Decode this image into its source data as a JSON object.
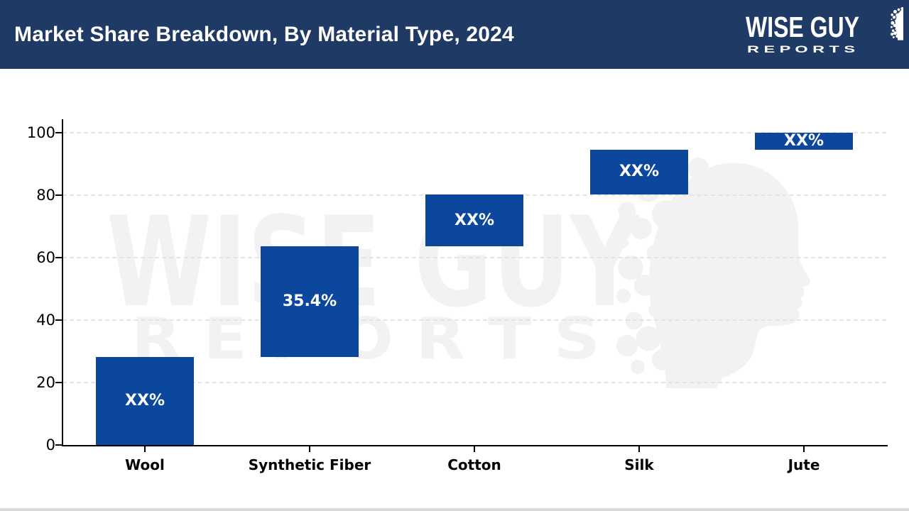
{
  "header": {
    "title": "Market Share Breakdown, By Material Type, 2024",
    "logo": {
      "name_line": "WISE GUY",
      "reports_line": "R E P O R T S",
      "face_icon": "dotted-head-profile"
    },
    "bg_color": "#203a66"
  },
  "watermark": {
    "name_line": "WISE GUY",
    "reports_line": "R E P O R T S",
    "color": "#f2f2f4"
  },
  "chart_data": {
    "type": "bar",
    "subtype": "waterfall",
    "title": "Market Share Breakdown, By Material Type, 2024",
    "categories": [
      "Wool",
      "Synthetic Fiber",
      "Cotton",
      "Silk",
      "Jute"
    ],
    "segments": [
      {
        "category": "Wool",
        "start": 0,
        "end": 28.2,
        "label": "XX%"
      },
      {
        "category": "Synthetic Fiber",
        "start": 28.2,
        "end": 63.6,
        "label": "35.4%"
      },
      {
        "category": "Cotton",
        "start": 63.6,
        "end": 80.2,
        "label": "XX%"
      },
      {
        "category": "Silk",
        "start": 80.2,
        "end": 94.6,
        "label": "XX%"
      },
      {
        "category": "Jute",
        "start": 94.6,
        "end": 100.0,
        "label": "XX%"
      }
    ],
    "xlabel": "",
    "ylabel": "",
    "ylim": [
      0,
      104
    ],
    "yticks": [
      0,
      20,
      40,
      60,
      80,
      100
    ],
    "grid": "horizontal-dashed",
    "legend": "none",
    "bar_color": "#0b479d",
    "bar_label_color": "#ffffff"
  },
  "footer": {
    "strip_color": "#d9d9d9"
  }
}
